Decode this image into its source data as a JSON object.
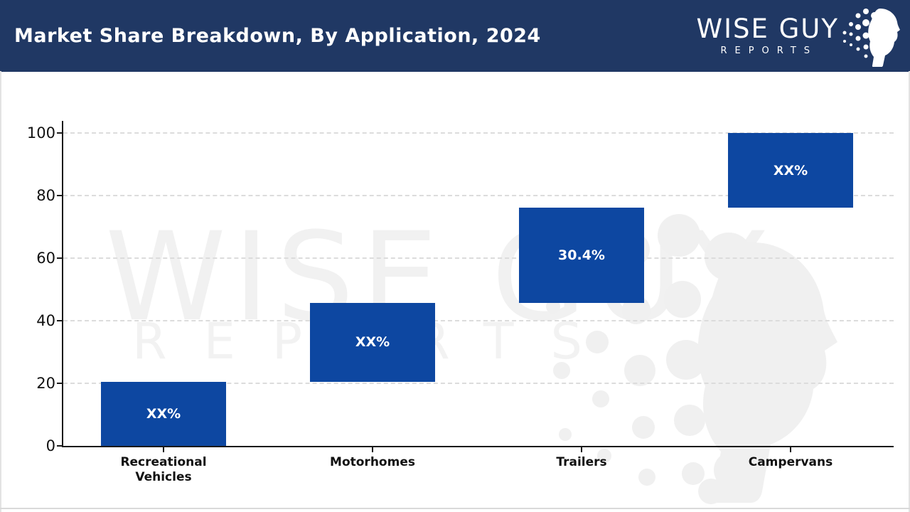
{
  "header": {
    "title": "Market Share Breakdown, By Application, 2024",
    "logo": {
      "name": "WISE GUY",
      "subtitle": "REPORTS"
    }
  },
  "watermark": {
    "line1": "WISE GUY",
    "line2": "REPORTS"
  },
  "chart_data": {
    "type": "bar",
    "subtype": "waterfall-floating-bars",
    "title": "Market Share Breakdown, By Application, 2024",
    "categories": [
      "Recreational Vehicles",
      "Motorhomes",
      "Trailers",
      "Campervans"
    ],
    "series": [
      {
        "name": "Market share (%)",
        "segments": [
          {
            "category": "Recreational Vehicles",
            "from": 0,
            "to": 20.5,
            "label": "XX%"
          },
          {
            "category": "Motorhomes",
            "from": 20.5,
            "to": 45.7,
            "label": "XX%"
          },
          {
            "category": "Trailers",
            "from": 45.7,
            "to": 76.1,
            "label": "30.4%"
          },
          {
            "category": "Campervans",
            "from": 76.1,
            "to": 100,
            "label": "XX%"
          }
        ]
      }
    ],
    "xlabel": "",
    "ylabel": "",
    "ylim": [
      0,
      100
    ],
    "yticks": [
      "0",
      "20",
      "40",
      "60",
      "80",
      "100"
    ],
    "grid": "horizontal-dashed",
    "legend": "none"
  },
  "colors": {
    "header_bg": "#203864",
    "bar": "#0d47a1",
    "grid": "#dcdcdc",
    "axis": "#1a1a1a",
    "watermark": "#f0f0f0"
  }
}
